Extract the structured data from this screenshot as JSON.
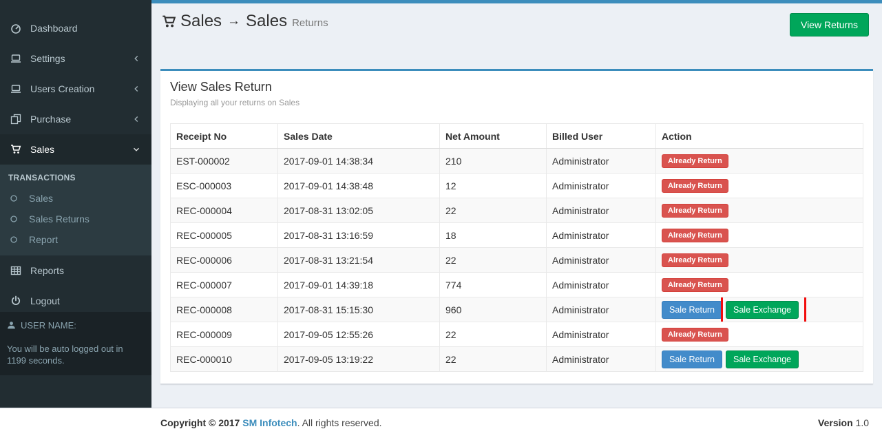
{
  "colors": {
    "topbar_blue": "#3c8dbc",
    "sidebar_bg": "#222d32",
    "sidebar_active_bg": "#1e282c",
    "submenu_bg": "#2c3b41",
    "content_bg": "#ecf0f5",
    "button_green": "#00a65a",
    "button_blue": "#428bca",
    "badge_red": "#d9534f",
    "highlight_red": "#f20d0d"
  },
  "sidebar": {
    "items": [
      {
        "label": "Dashboard",
        "icon": "dashboard-icon"
      },
      {
        "label": "Settings",
        "icon": "laptop-icon",
        "chevron": "left"
      },
      {
        "label": "Users Creation",
        "icon": "laptop-icon",
        "chevron": "left"
      },
      {
        "label": "Purchase",
        "icon": "copy-icon",
        "chevron": "left"
      },
      {
        "label": "Sales",
        "icon": "cart-icon",
        "chevron": "down",
        "active": true
      }
    ],
    "submenu": {
      "header": "TRANSACTIONS",
      "items": [
        {
          "label": "Sales"
        },
        {
          "label": "Sales Returns"
        },
        {
          "label": "Report"
        }
      ]
    },
    "items_bottom": [
      {
        "label": "Reports",
        "icon": "table-icon"
      },
      {
        "label": "Logout",
        "icon": "power-icon"
      }
    ],
    "user_panel": {
      "label": "USER NAME:",
      "message_line1": "You will be auto logged out in",
      "message_line2": "1199 seconds."
    }
  },
  "header": {
    "breadcrumb_primary": "Sales",
    "arrow_glyph": "→",
    "breadcrumb_secondary": "Sales",
    "breadcrumb_suffix": "Returns",
    "view_returns_button": "View Returns"
  },
  "panel": {
    "title": "View Sales Return",
    "subtitle": "Displaying all your returns on Sales"
  },
  "table": {
    "columns": [
      "Receipt No",
      "Sales Date",
      "Net Amount",
      "Billed User",
      "Action"
    ],
    "rows": [
      {
        "receipt_no": "EST-000002",
        "sales_date": "2017-09-01 14:38:34",
        "net_amount": "210",
        "billed_user": "Administrator",
        "actions": [
          {
            "type": "already-return"
          }
        ]
      },
      {
        "receipt_no": "ESC-000003",
        "sales_date": "2017-09-01 14:38:48",
        "net_amount": "12",
        "billed_user": "Administrator",
        "actions": [
          {
            "type": "already-return"
          }
        ]
      },
      {
        "receipt_no": "REC-000004",
        "sales_date": "2017-08-31 13:02:05",
        "net_amount": "22",
        "billed_user": "Administrator",
        "actions": [
          {
            "type": "already-return"
          }
        ]
      },
      {
        "receipt_no": "REC-000005",
        "sales_date": "2017-08-31 13:16:59",
        "net_amount": "18",
        "billed_user": "Administrator",
        "actions": [
          {
            "type": "already-return"
          }
        ]
      },
      {
        "receipt_no": "REC-000006",
        "sales_date": "2017-08-31 13:21:54",
        "net_amount": "22",
        "billed_user": "Administrator",
        "actions": [
          {
            "type": "already-return"
          }
        ]
      },
      {
        "receipt_no": "REC-000007",
        "sales_date": "2017-09-01 14:39:18",
        "net_amount": "774",
        "billed_user": "Administrator",
        "actions": [
          {
            "type": "already-return"
          }
        ]
      },
      {
        "receipt_no": "REC-000008",
        "sales_date": "2017-08-31 15:15:30",
        "net_amount": "960",
        "billed_user": "Administrator",
        "actions": [
          {
            "type": "sale-return"
          },
          {
            "type": "sale-exchange",
            "highlighted": true
          }
        ]
      },
      {
        "receipt_no": "REC-000009",
        "sales_date": "2017-09-05 12:55:26",
        "net_amount": "22",
        "billed_user": "Administrator",
        "actions": [
          {
            "type": "already-return"
          }
        ]
      },
      {
        "receipt_no": "REC-000010",
        "sales_date": "2017-09-05 13:19:22",
        "net_amount": "22",
        "billed_user": "Administrator",
        "actions": [
          {
            "type": "sale-return"
          },
          {
            "type": "sale-exchange"
          }
        ]
      }
    ]
  },
  "action_labels": {
    "already-return": "Already Return",
    "sale-return": "Sale Return",
    "sale-exchange": "Sale Exchange"
  },
  "footer": {
    "copyright_prefix": "Copyright © 2017",
    "company": "SM Infotech",
    "copyright_suffix": ". All rights reserved.",
    "version_label": "Version",
    "version_value": "1.0"
  }
}
